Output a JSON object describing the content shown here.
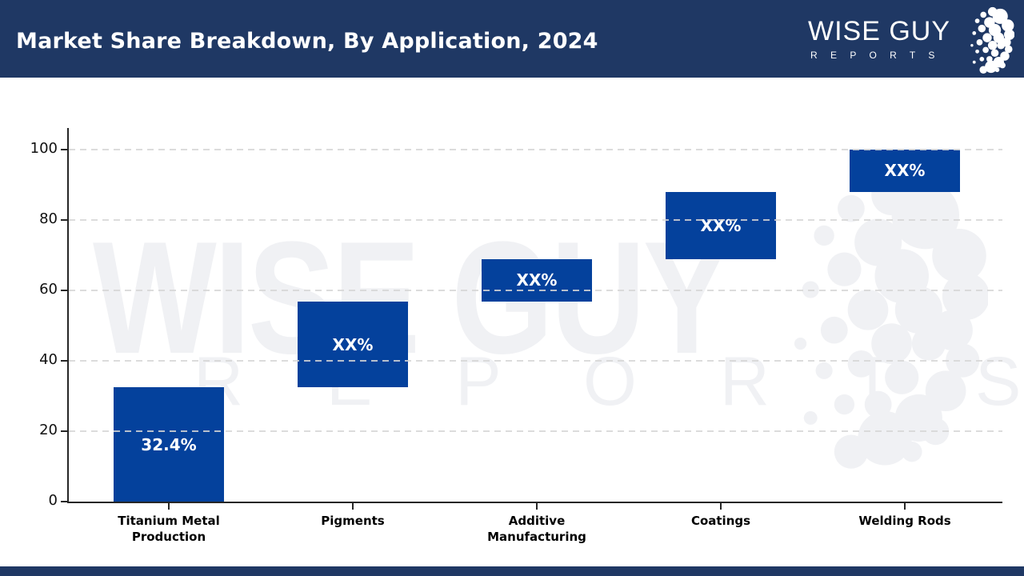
{
  "header": {
    "title": "Market Share Breakdown, By Application, 2024",
    "logo_line1": "WISE GUY",
    "logo_line2": "R E P O R T S"
  },
  "watermark": {
    "line1": "WISE GUY",
    "line2": "R E P O R T S"
  },
  "colors": {
    "header_bg": "#1F3864",
    "footer_bg": "#1F3864",
    "bar": "#04419C",
    "axis": "#262626",
    "grid": "#D6D6D6",
    "watermark": "#F0F1F4"
  },
  "chart_data": {
    "type": "bar",
    "subtype": "waterfall",
    "title": "Market Share Breakdown, By Application, 2024",
    "xlabel": "",
    "ylabel": "",
    "ylim": [
      0,
      105
    ],
    "y_ticks": [
      0,
      20,
      40,
      60,
      80,
      100
    ],
    "grid": "horizontal dashed",
    "legend": "none",
    "bar_color": "#04419C",
    "value_label_color": "#ffffff",
    "categories": [
      "Titanium Metal Production",
      "Pigments",
      "Additive Manufacturing",
      "Coatings",
      "Welding Rods"
    ],
    "segments": [
      {
        "category": "Titanium Metal Production",
        "category_lines": [
          "Titanium Metal",
          "Production"
        ],
        "start": 0,
        "end": 32.4,
        "value_label": "32.4%"
      },
      {
        "category": "Pigments",
        "category_lines": [
          "Pigments"
        ],
        "start": 32.4,
        "end": 56.8,
        "value_label": "XX%"
      },
      {
        "category": "Additive Manufacturing",
        "category_lines": [
          "Additive",
          "Manufacturing"
        ],
        "start": 56.8,
        "end": 68.9,
        "value_label": "XX%"
      },
      {
        "category": "Coatings",
        "category_lines": [
          "Coatings"
        ],
        "start": 68.9,
        "end": 88.0,
        "value_label": "XX%"
      },
      {
        "category": "Welding Rods",
        "category_lines": [
          "Welding Rods"
        ],
        "start": 88.0,
        "end": 100.0,
        "value_label": "XX%"
      }
    ]
  }
}
